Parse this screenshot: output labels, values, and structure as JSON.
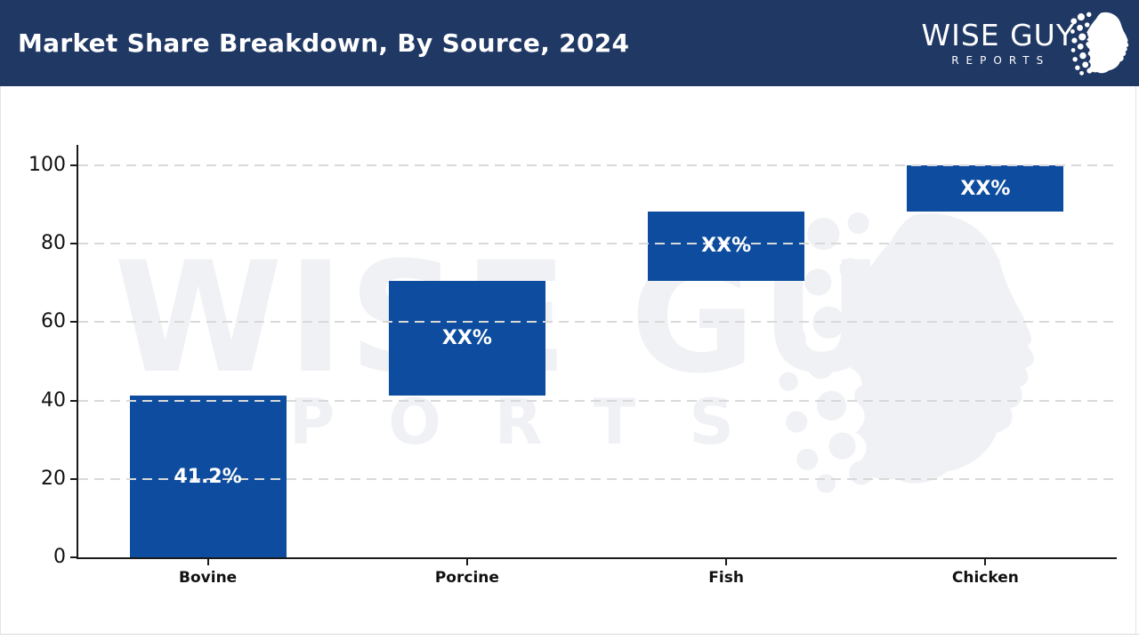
{
  "header": {
    "title": "Market Share Breakdown, By Source, 2024",
    "background": "#203864",
    "text_color": "#ffffff"
  },
  "brand": {
    "name": "WISE GUY",
    "subtitle": "REPORTS"
  },
  "watermark": {
    "line1": "WISE GUY",
    "line2": "PORTS",
    "color": "#f0f1f4"
  },
  "chart_data": {
    "type": "waterfall",
    "title": "Market Share Breakdown, By Source, 2024",
    "categories": [
      "Bovine",
      "Porcine",
      "Fish",
      "Chicken"
    ],
    "segments": [
      {
        "category": "Bovine",
        "start": 0,
        "end": 41.2,
        "label": "41.2%"
      },
      {
        "category": "Porcine",
        "start": 41.2,
        "end": 70.6,
        "label": "XX%"
      },
      {
        "category": "Fish",
        "start": 70.6,
        "end": 88.2,
        "label": "XX%"
      },
      {
        "category": "Chicken",
        "start": 88.2,
        "end": 100,
        "label": "XX%"
      }
    ],
    "xlabel": "",
    "ylabel": "",
    "ylim": [
      0,
      100
    ],
    "yticks": [
      0,
      20,
      40,
      60,
      80,
      100
    ],
    "grid": "horizontal dashed gridlines at yticks, drawn above bars",
    "legend": "none",
    "bar_color": "#0d4c9e",
    "bar_label_color": "#ffffff",
    "axis_color": "#1a1a1a",
    "gridline_color": "#d9d9d9"
  }
}
